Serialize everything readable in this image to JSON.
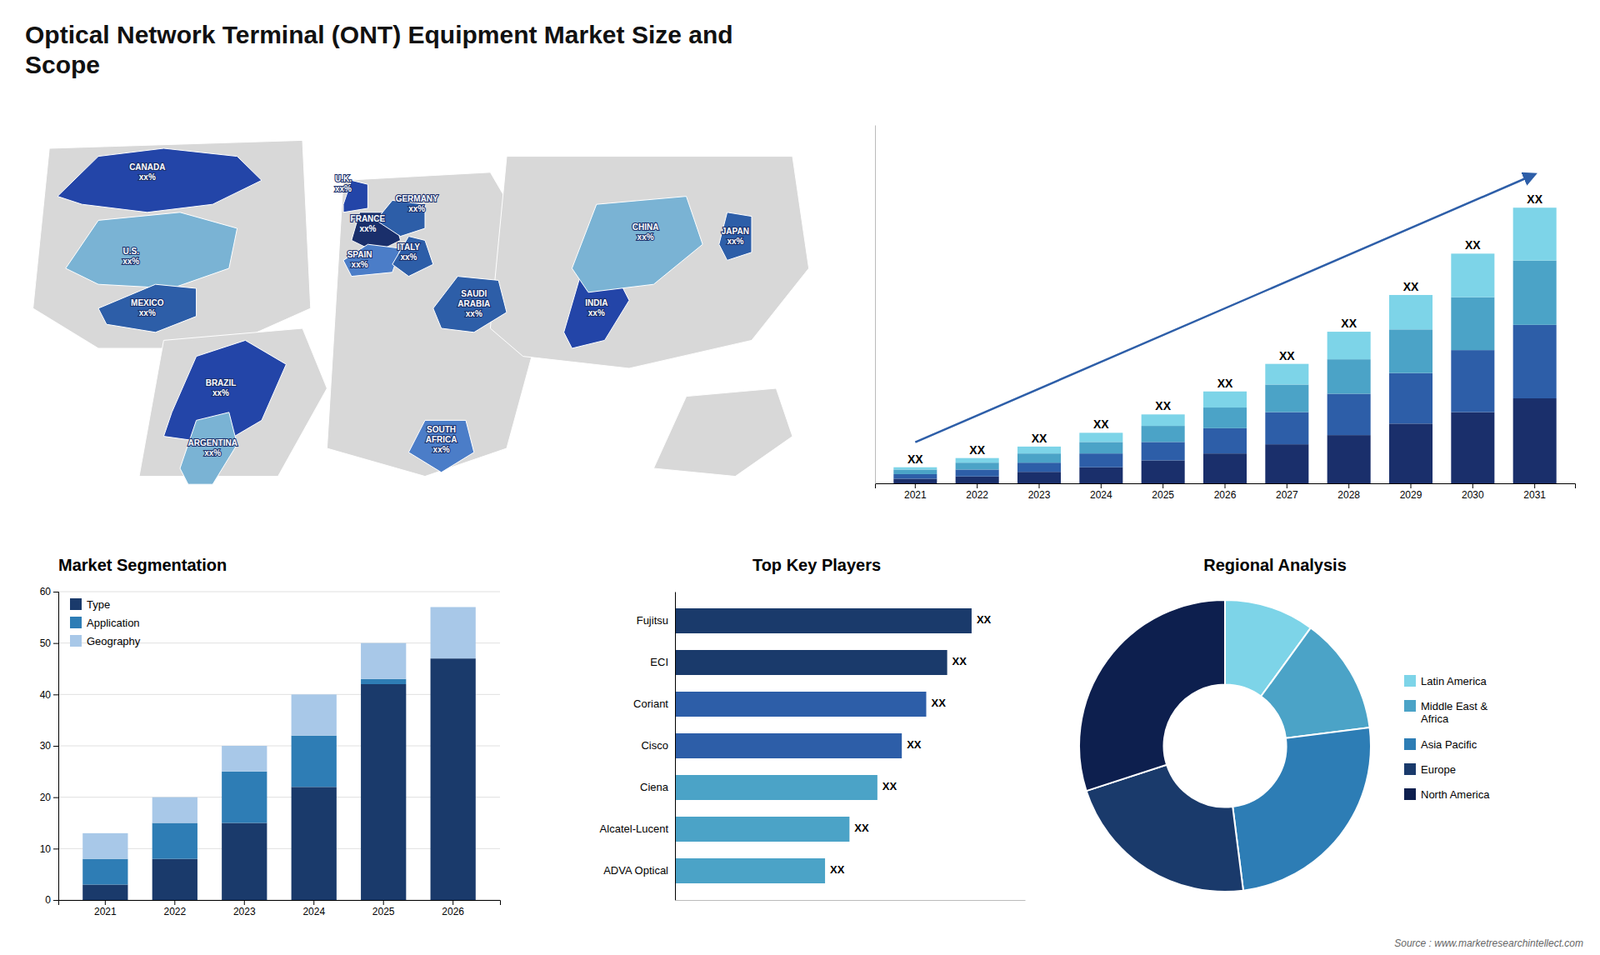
{
  "title": "Optical Network Terminal (ONT) Equipment Market Size and\nScope",
  "annotations": [
    "Source : www.marketresearchintellect.com"
  ],
  "chart_data": [
    {
      "type": "map",
      "categories": [
        "CANADA\nxx%",
        "U.S.\nxx%",
        "MEXICO\nxx%",
        "BRAZIL\nxx%",
        "ARGENTINA\nxx%",
        "U.K.\nxx%",
        "FRANCE\nxx%",
        "GERMANY\nxx%",
        "SPAIN\nxx%",
        "ITALY\nxx%",
        "SAUDI\nARABIA\nxx%",
        "SOUTH\nAFRICA\nxx%",
        "INDIA\nxx%",
        "CHINA\nxx%",
        "JAPAN\nxx%"
      ],
      "colors": [
        "#2345a8",
        "#7ab3d4",
        "#2d5ea8",
        "#2345a8",
        "#7ab3d4",
        "#2345a8",
        "#1a2f6b",
        "#2d5ea8",
        "#4b7dc8",
        "#2d5ea8",
        "#2d5ea8",
        "#4b7dc8",
        "#2345a8",
        "#7ab3d4",
        "#2d5ea8"
      ]
    },
    {
      "type": "bar",
      "stacked": true,
      "categories": [
        "2021",
        "2022",
        "2023",
        "2024",
        "2025",
        "2026",
        "2027",
        "2028",
        "2029",
        "2030",
        "2031"
      ],
      "series": [
        {
          "color": "#1a2f6b",
          "values": [
            2,
            3,
            5,
            7,
            10,
            13,
            17,
            21,
            26,
            31,
            37
          ]
        },
        {
          "color": "#2d5ea8",
          "values": [
            2,
            3,
            4,
            6,
            8,
            11,
            14,
            18,
            22,
            27,
            32
          ]
        },
        {
          "color": "#4ba3c7",
          "values": [
            2,
            3,
            4,
            5,
            7,
            9,
            12,
            15,
            19,
            23,
            28
          ]
        },
        {
          "color": "#7dd4e8",
          "values": [
            1,
            2,
            3,
            4,
            5,
            7,
            9,
            12,
            15,
            19,
            23
          ]
        }
      ],
      "ylim": [
        0,
        156
      ],
      "tick_labels": "x",
      "annotations": [
        "XX",
        "XX",
        "XX",
        "XX",
        "XX",
        "XX",
        "XX",
        "XX",
        "XX",
        "XX",
        "XX"
      ]
    },
    {
      "type": "bar",
      "stacked": true,
      "title": "Market Segmentation",
      "categories": [
        "2021",
        "2022",
        "2023",
        "2024",
        "2025",
        "2026"
      ],
      "series": [
        {
          "name": "Type",
          "color": "#1a3a6b",
          "values": [
            3,
            8,
            15,
            22,
            42,
            47
          ]
        },
        {
          "name": "Application",
          "color": "#2e7db5",
          "values": [
            5,
            7,
            10,
            10,
            1,
            0
          ]
        },
        {
          "name": "Geography",
          "color": "#a8c8e8",
          "values": [
            5,
            5,
            5,
            8,
            7,
            10
          ]
        }
      ],
      "ylim": [
        0,
        60
      ],
      "yticks": [
        0,
        10,
        20,
        30,
        40,
        50,
        60
      ],
      "grid": true,
      "legend": "upper left"
    },
    {
      "type": "bar",
      "orientation": "horizontal",
      "title": "Top Key Players",
      "categories": [
        "Fujitsu",
        "ECI",
        "Coriant",
        "Cisco",
        "Ciena",
        "Alcatel-Lucent",
        "ADVA Optical"
      ],
      "values": [
        85,
        78,
        72,
        65,
        58,
        50,
        43
      ],
      "colors": [
        "#1a3a6b",
        "#1a3a6b",
        "#2d5ea8",
        "#2d5ea8",
        "#4ba3c7",
        "#4ba3c7",
        "#4ba3c7"
      ],
      "xlim": [
        0,
        100.3
      ],
      "tick_labels": "y",
      "annotations": [
        "XX",
        "XX",
        "XX",
        "XX",
        "XX",
        "XX",
        "XX"
      ]
    },
    {
      "type": "pie",
      "title": "Regional Analysis",
      "categories": [
        "Latin America",
        "Middle East &\nAfrica",
        "Asia Pacific",
        "Europe",
        "North America"
      ],
      "values": [
        10,
        13,
        25,
        22,
        30
      ],
      "colors": [
        "#7dd4e8",
        "#4ba3c7",
        "#2d7db5",
        "#1a3a6b",
        "#0d1f4e"
      ],
      "legend": "right"
    }
  ]
}
